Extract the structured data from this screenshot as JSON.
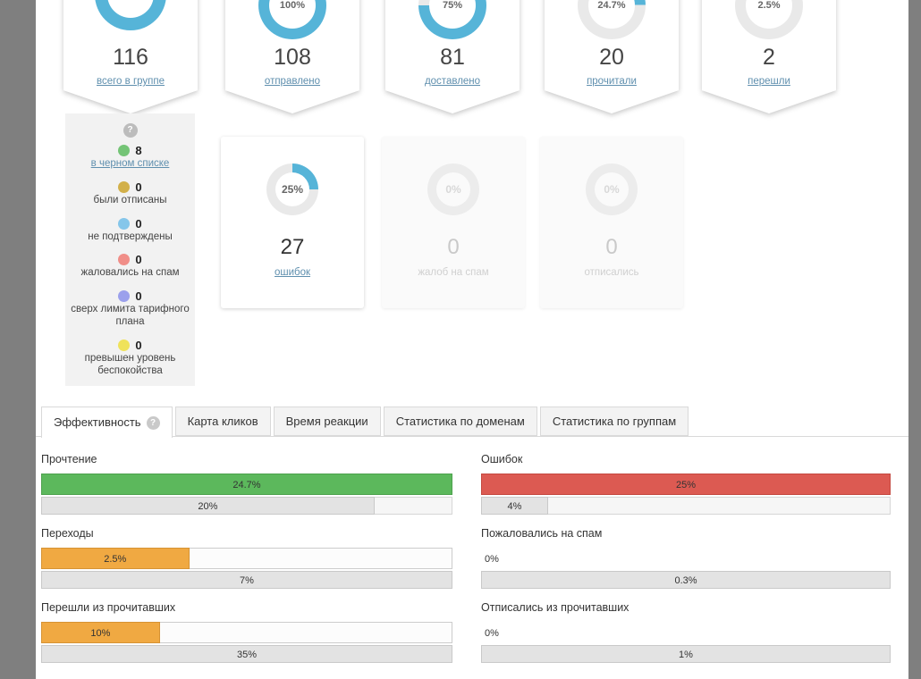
{
  "theme": {
    "blue": "#56b4d8",
    "green": "#5cb85c",
    "orange": "#f0a942",
    "red": "#dc5a52",
    "link": "#5f8fae"
  },
  "icons": {
    "help": "?"
  },
  "summary_cards": [
    {
      "value": "116",
      "label": "всего в группе",
      "pct": 100,
      "percent": ""
    },
    {
      "value": "108",
      "label": "отправлено",
      "pct": 100,
      "percent": "100%"
    },
    {
      "value": "81",
      "label": "доставлено",
      "pct": 75,
      "percent": "75%"
    },
    {
      "value": "20",
      "label": "прочитали",
      "pct": 24.7,
      "percent": "24.7%"
    },
    {
      "value": "2",
      "label": "перешли",
      "pct": 2.5,
      "percent": "2.5%"
    }
  ],
  "legend": {
    "items": [
      {
        "color": "#74c476",
        "value": "8",
        "label": "в черном списке"
      },
      {
        "color": "#d2b04a",
        "value": "0",
        "label": "были отписаны"
      },
      {
        "color": "#85c6ea",
        "value": "0",
        "label": "не подтверждены"
      },
      {
        "color": "#f08e88",
        "value": "0",
        "label": "жаловались на спам"
      },
      {
        "color": "#9ba0ec",
        "value": "0",
        "label": "сверх лимита тарифного плана"
      },
      {
        "color": "#efe25a",
        "value": "0",
        "label": "превышен уровень беспокойства"
      }
    ]
  },
  "secondary_cards": [
    {
      "value": "27",
      "label": "ошибок",
      "pct": 25,
      "percent": "25%"
    },
    {
      "value": "0",
      "label": "жалоб на спам",
      "pct": 0,
      "percent": "0%"
    },
    {
      "value": "0",
      "label": "отписались",
      "pct": 0,
      "percent": "0%"
    }
  ],
  "tabs": [
    {
      "label": "Эффективность"
    },
    {
      "label": "Карта кликов"
    },
    {
      "label": "Время реакции"
    },
    {
      "label": "Статистика по доменам"
    },
    {
      "label": "Статистика по группам"
    }
  ],
  "metrics": {
    "left": [
      {
        "title": "Прочтение",
        "value": "24.7%",
        "value_pct": 24.7,
        "color": "green",
        "avg": "20%",
        "avg_pct": 20
      },
      {
        "title": "Переходы",
        "value": "2.5%",
        "value_pct": 2.5,
        "color": "orange",
        "avg": "7%",
        "avg_pct": 7
      },
      {
        "title": "Перешли из прочитавших",
        "value": "10%",
        "value_pct": 10,
        "color": "orange",
        "avg": "35%",
        "avg_pct": 35
      }
    ],
    "right": [
      {
        "title": "Ошибок",
        "value": "25%",
        "value_pct": 25,
        "color": "red",
        "avg": "4%",
        "avg_pct": 4
      },
      {
        "title": "Пожаловались на спам",
        "value": "0%",
        "value_pct": 0,
        "color": "none",
        "avg": "0.3%",
        "avg_pct": 0.3
      },
      {
        "title": "Отписались из прочитавших",
        "value": "0%",
        "value_pct": 0,
        "color": "none",
        "avg": "1%",
        "avg_pct": 1
      }
    ]
  }
}
